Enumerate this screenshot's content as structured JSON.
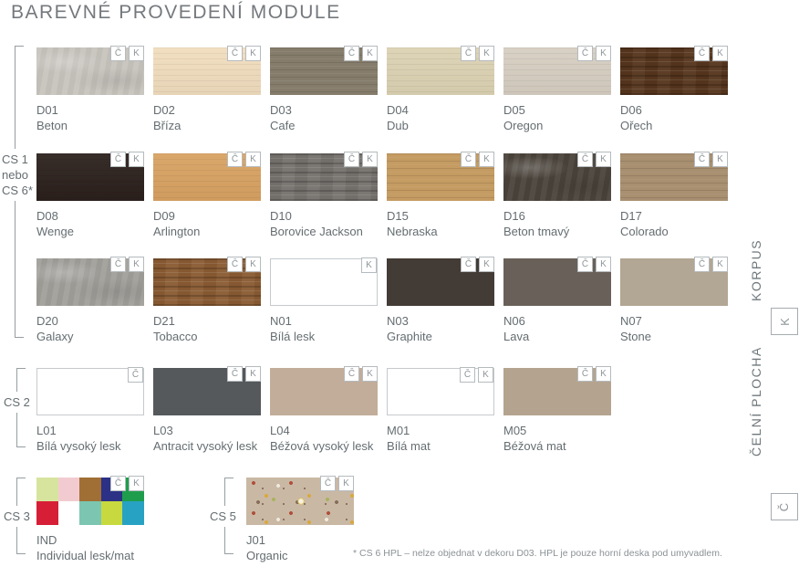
{
  "title": "BAREVNÉ PROVEDENÍ MODULE",
  "side_legend": {
    "korpus": {
      "label": "KORPUS",
      "badge": "K"
    },
    "front": {
      "label": "ČELNÍ PLOCHA",
      "badge": "Č"
    }
  },
  "groups": {
    "cs1": {
      "lines": [
        "CS 1",
        "nebo",
        "CS 6*"
      ]
    },
    "cs2": {
      "label": "CS 2"
    },
    "cs3": {
      "label": "CS 3"
    },
    "cs5": {
      "label": "CS 5"
    }
  },
  "swatch_rows": [
    [
      {
        "code": "D01",
        "name": "Beton",
        "color": "#c7c3bd",
        "texture": "concrete",
        "badges": [
          "Č",
          "K"
        ]
      },
      {
        "code": "D02",
        "name": "Bříza",
        "color": "#f1ddbe",
        "texture": "wood-soft",
        "badges": [
          "Č",
          "K"
        ]
      },
      {
        "code": "D03",
        "name": "Cafe",
        "color": "#857c6b",
        "texture": "wood",
        "badges": [
          "Č",
          "K"
        ]
      },
      {
        "code": "D04",
        "name": "Dub",
        "color": "#dcd2b3",
        "texture": "wood-soft",
        "badges": [
          "Č",
          "K"
        ]
      },
      {
        "code": "D05",
        "name": "Oregon",
        "color": "#d6cec1",
        "texture": "wood-soft",
        "badges": [
          "Č",
          "K"
        ]
      },
      {
        "code": "D06",
        "name": "Ořech",
        "color": "#56351d",
        "texture": "wood-strong",
        "badges": [
          "Č",
          "K"
        ]
      }
    ],
    [
      {
        "code": "D08",
        "name": "Wenge",
        "color": "#2b201c",
        "texture": "wood-soft",
        "badges": [
          "Č",
          "K"
        ]
      },
      {
        "code": "D09",
        "name": "Arlington",
        "color": "#d8a262",
        "texture": "wood-soft",
        "badges": [
          "Č",
          "K"
        ]
      },
      {
        "code": "D10",
        "name": "Borovice Jackson",
        "color": "#76726e",
        "texture": "wood-strong",
        "badges": [
          "Č",
          "K"
        ]
      },
      {
        "code": "D15",
        "name": "Nebraska",
        "color": "#c49b62",
        "texture": "wood",
        "badges": [
          "Č",
          "K"
        ]
      },
      {
        "code": "D16",
        "name": "Beton tmavý",
        "color": "#4a433b",
        "texture": "concrete",
        "badges": [
          "Č",
          "K"
        ]
      },
      {
        "code": "D17",
        "name": "Colorado",
        "color": "#a78f70",
        "texture": "wood",
        "badges": [
          "Č",
          "K"
        ]
      }
    ],
    [
      {
        "code": "D20",
        "name": "Galaxy",
        "color": "#a19f9a",
        "texture": "concrete",
        "badges": [
          "Č",
          "K"
        ]
      },
      {
        "code": "D21",
        "name": "Tobacco",
        "color": "#8a5c33",
        "texture": "wood-strong",
        "badges": [
          "Č",
          "K"
        ]
      },
      {
        "code": "N01",
        "name": "Bílá lesk",
        "color": "#ffffff",
        "texture": "white",
        "badges": [
          "K"
        ]
      },
      {
        "code": "N03",
        "name": "Graphite",
        "color": "#433b35",
        "texture": "plain",
        "badges": [
          "Č",
          "K"
        ]
      },
      {
        "code": "N06",
        "name": "Lava",
        "color": "#696159",
        "texture": "plain",
        "badges": [
          "Č",
          "K"
        ]
      },
      {
        "code": "N07",
        "name": "Stone",
        "color": "#b2a694",
        "texture": "plain",
        "badges": [
          "Č",
          "K"
        ]
      }
    ],
    [
      {
        "code": "L01",
        "name": "Bílá vysoký lesk",
        "color": "#ffffff",
        "texture": "white",
        "badges": [
          "Č"
        ]
      },
      {
        "code": "L03",
        "name": "Antracit vysoký lesk",
        "color": "#55595c",
        "texture": "plain",
        "badges": [
          "Č",
          "K"
        ]
      },
      {
        "code": "L04",
        "name": "Béžová vysoký lesk",
        "color": "#c1ad9a",
        "texture": "plain",
        "badges": [
          "Č",
          "K"
        ]
      },
      {
        "code": "M01",
        "name": "Bílá mat",
        "color": "#ffffff",
        "texture": "white",
        "badges": [
          "Č",
          "K"
        ]
      },
      {
        "code": "M05",
        "name": "Béžová mat",
        "color": "#b4a48f",
        "texture": "plain",
        "badges": [
          "Č",
          "K"
        ]
      }
    ],
    [
      {
        "code": "IND",
        "name": "Individual lesk/mat",
        "texture": "grid",
        "badges": [
          "Č",
          "K"
        ],
        "grid": [
          [
            "#d6e49e",
            "#f2cbd1",
            "#a06f35",
            "#2c3186",
            "#1e9e4d"
          ],
          [
            "#d61f37",
            "#ffffff",
            "#7cc6b1",
            "#c7d93e",
            "#28a2c3"
          ]
        ]
      },
      {
        "code": "J01",
        "name": "Organic",
        "color": "#c9b8a4",
        "texture": "terrazzo",
        "badges": [
          "Č",
          "K"
        ]
      }
    ]
  ],
  "footnote": "* CS 6 HPL – nelze objednat v dekoru D03. HPL je pouze horní deska pod umyvadlem."
}
